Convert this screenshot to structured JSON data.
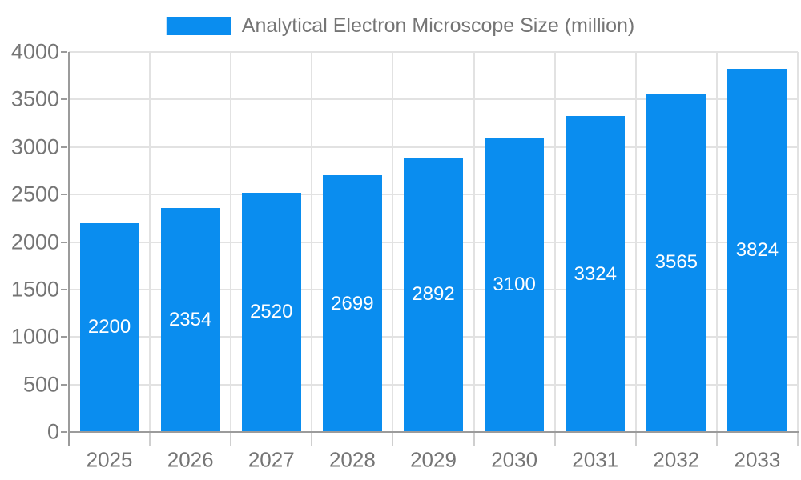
{
  "legend": {
    "label": "Analytical Electron Microscope Size (million)"
  },
  "chart_data": {
    "type": "bar",
    "title": "Analytical Electron Microscope Size (million)",
    "series": [
      {
        "name": "Analytical Electron Microscope Size (million)",
        "values": [
          2200,
          2354,
          2520,
          2699,
          2892,
          3100,
          3324,
          3565,
          3824
        ]
      }
    ],
    "categories": [
      "2025",
      "2026",
      "2027",
      "2028",
      "2029",
      "2030",
      "2031",
      "2032",
      "2033"
    ],
    "xlabel": "",
    "ylabel": "",
    "ylim": [
      0,
      4000
    ],
    "y_ticks": [
      0,
      500,
      1000,
      1500,
      2000,
      2500,
      3000,
      3500,
      4000
    ],
    "grid": true,
    "legend_position": "top-center",
    "bar_labels_inside": true,
    "colors": {
      "bar": "#0A8DEF",
      "bar_label_text": "#FFFFFF",
      "axis_text": "#757575",
      "axis_line": "#9B9B9B",
      "grid_line": "#E2E2E2",
      "x_tick": "#CFCFCF",
      "background": "#FFFFFF"
    }
  }
}
